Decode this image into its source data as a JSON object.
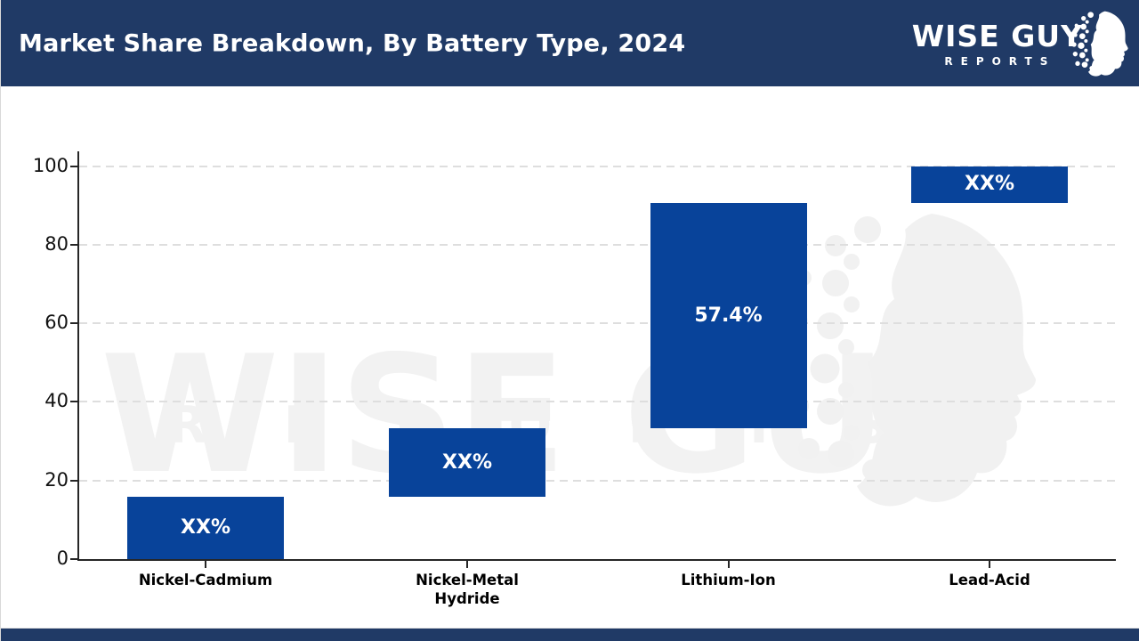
{
  "header": {
    "title": "Market Share Breakdown, By Battery Type, 2024",
    "logo": {
      "name": "WISE GUY",
      "sub": "REPORTS"
    }
  },
  "watermark": {
    "name": "WISE GU",
    "sub": "REPORTS"
  },
  "chart_data": {
    "type": "bar",
    "variant": "floating-segment stacked (segments sum to 100%)",
    "title": "Market Share Breakdown, By Battery Type, 2024",
    "categories": [
      "Nickel-Cadmium",
      "Nickel-Metal Hydride",
      "Lithium-Ion",
      "Lead-Acid"
    ],
    "x_tick_labels": [
      "Nickel-Cadmium",
      "Nickel-Metal\nHydride",
      "Lithium-Ion",
      "Lead-Acid"
    ],
    "segments": [
      {
        "category": "Nickel-Cadmium",
        "start": 0,
        "end": 15.8,
        "label": "XX%"
      },
      {
        "category": "Nickel-Metal Hydride",
        "start": 15.8,
        "end": 33.2,
        "label": "XX%"
      },
      {
        "category": "Lithium-Ion",
        "start": 33.2,
        "end": 90.6,
        "label": "57.4%"
      },
      {
        "category": "Lead-Acid",
        "start": 90.6,
        "end": 100,
        "label": "XX%"
      }
    ],
    "ylim": [
      0,
      100
    ],
    "yticks": [
      0,
      20,
      40,
      60,
      80,
      100
    ],
    "grid": {
      "horizontal": true,
      "style": "dashed",
      "color": "#dedede"
    },
    "legend": false,
    "xlabel": "",
    "ylabel": ""
  },
  "colors": {
    "header_bg": "#203a66",
    "footer_bg": "#203a66",
    "bar": "#08439a",
    "bar_label": "#ffffff",
    "axis": "#262626",
    "tick_label": "#111111",
    "grid": "#dedede",
    "watermark": "#f1f1f1",
    "canvas": "#ffffff",
    "border": "#d9d9d9"
  }
}
